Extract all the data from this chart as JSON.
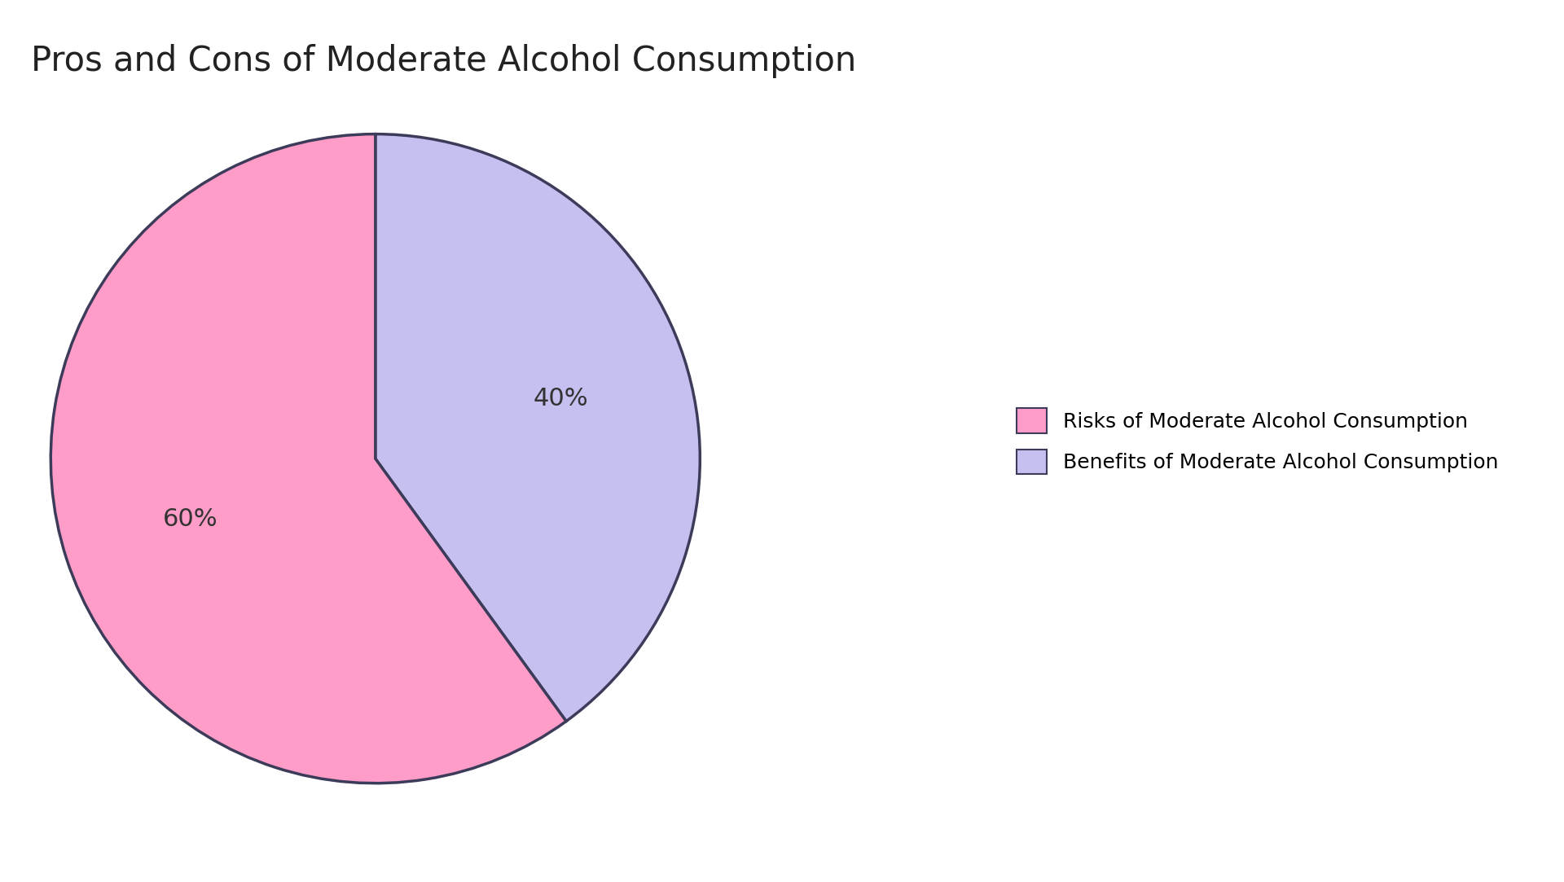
{
  "title": "Pros and Cons of Moderate Alcohol Consumption",
  "slices": [
    40,
    60
  ],
  "labels": [
    "Benefits of Moderate Alcohol Consumption",
    "Risks of Moderate Alcohol Consumption"
  ],
  "colors": [
    "#C5C0F0",
    "#FF9DC8"
  ],
  "edge_color": "#3C3B5A",
  "edge_width": 2.5,
  "pct_labels": [
    "40%",
    "60%"
  ],
  "pct_fontsize": 22,
  "title_fontsize": 30,
  "legend_fontsize": 18,
  "background_color": "#FFFFFF",
  "startangle": 90,
  "pct_distance": 0.6,
  "legend_order_labels": [
    "Risks of Moderate Alcohol Consumption",
    "Benefits of Moderate Alcohol Consumption"
  ],
  "legend_order_colors": [
    "#FF9DC8",
    "#C5C0F0"
  ]
}
